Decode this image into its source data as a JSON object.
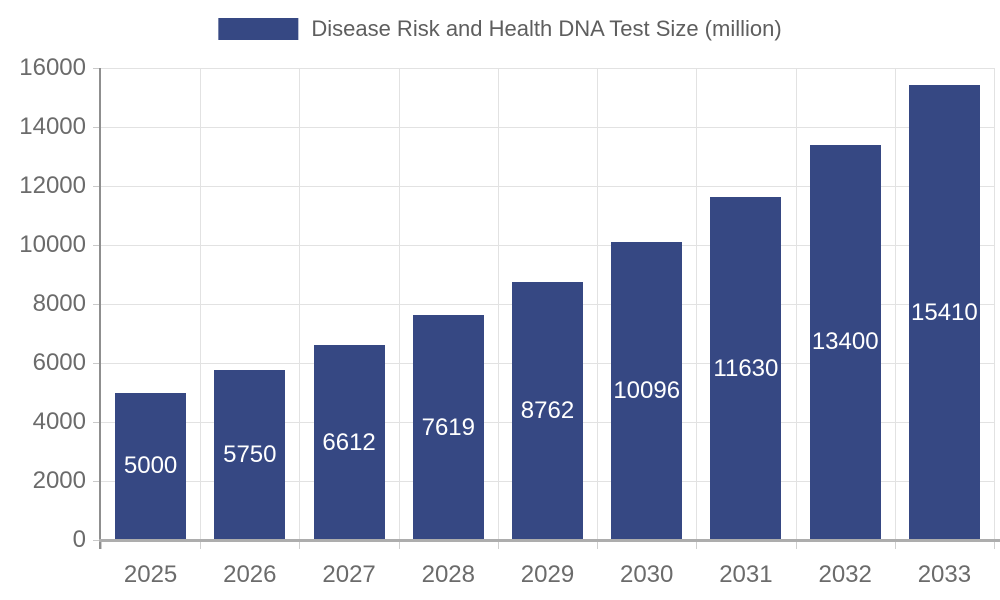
{
  "legend": {
    "label": "Disease Risk and Health DNA Test Size (million)",
    "swatch_color": "#364883"
  },
  "chart_data": {
    "type": "bar",
    "title": "Disease Risk and Health DNA Test Size (million)",
    "categories": [
      "2025",
      "2026",
      "2027",
      "2028",
      "2029",
      "2030",
      "2031",
      "2032",
      "2033"
    ],
    "values": [
      5000,
      5750,
      6612,
      7619,
      8762,
      10096,
      11630,
      13400,
      15410
    ],
    "xlabel": "",
    "ylabel": "",
    "ylim": [
      0,
      16000
    ],
    "yticks": [
      0,
      2000,
      4000,
      6000,
      8000,
      10000,
      12000,
      14000,
      16000
    ],
    "grid": true,
    "legend_position": "top",
    "bar_color": "#364883",
    "bar_label_color": "#ffffff",
    "axis_label_color": "#6b6b6b",
    "grid_color": "#e2e2e2",
    "axis_line_color": "#8f8f8f"
  }
}
